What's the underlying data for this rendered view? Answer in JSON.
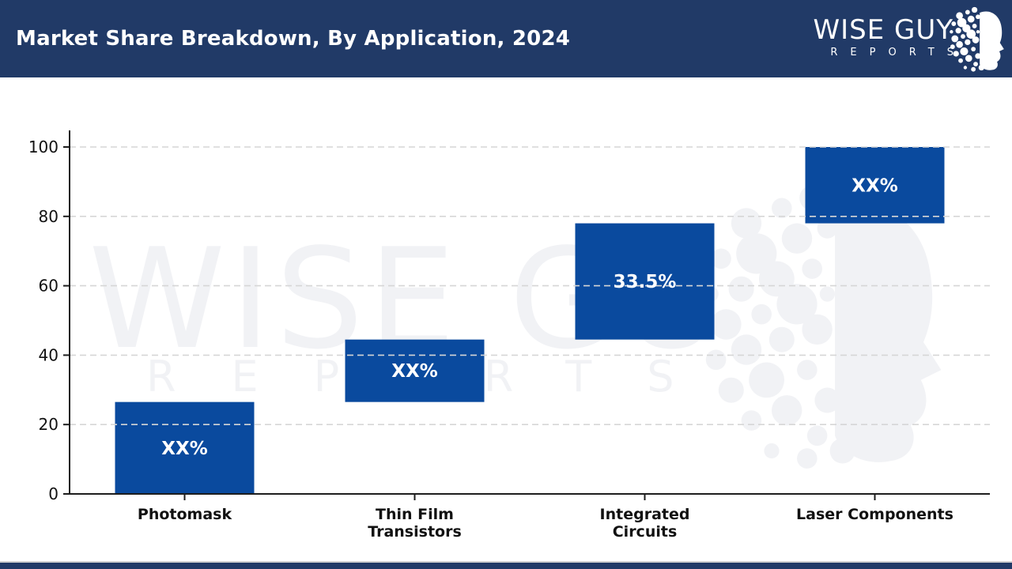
{
  "header": {
    "title": "Market Share Breakdown, By Application, 2024",
    "background_color": "#213a67",
    "logo": {
      "line1": "WISE GUY",
      "line2": "REPORTS",
      "icon": "dotted-face-profile"
    }
  },
  "watermark": {
    "line1": "WISE GU",
    "line2": "REPORTS",
    "color": "#f1f2f5",
    "icon": "dotted-face-profile"
  },
  "footer": {
    "background_color": "#213a67"
  },
  "chart_data": {
    "type": "bar",
    "subtype": "floating-waterfall",
    "title": "Market Share Breakdown, By Application, 2024",
    "unit": "%",
    "categories": [
      "Photomask",
      "Thin Film Transistors",
      "Integrated Circuits",
      "Laser Components"
    ],
    "category_label_lines": [
      [
        "Photomask"
      ],
      [
        "Thin Film",
        "Transistors"
      ],
      [
        "Integrated",
        "Circuits"
      ],
      [
        "Laser Components"
      ]
    ],
    "series": [
      {
        "name": "Market Share",
        "segments": [
          {
            "category": "Photomask",
            "start": 0,
            "end": 26.5,
            "value_label": "XX%"
          },
          {
            "category": "Thin Film Transistors",
            "start": 26.5,
            "end": 44.5,
            "value_label": "XX%"
          },
          {
            "category": "Integrated Circuits",
            "start": 44.5,
            "end": 78,
            "value_label": "33.5%"
          },
          {
            "category": "Laser Components",
            "start": 78,
            "end": 100,
            "value_label": "XX%"
          }
        ]
      }
    ],
    "ylim": [
      0,
      100
    ],
    "yticks": [
      0,
      20,
      40,
      60,
      80,
      100
    ],
    "grid": {
      "horizontal": true,
      "style": "dashed",
      "color": "#d6d6d6",
      "drawn_over_bars": true
    },
    "legend": null,
    "bar_color": "#0a4a9e",
    "value_label_color": "#ffffff",
    "axis_color": "#1d1d1d",
    "tick_label_color": "#111111"
  }
}
